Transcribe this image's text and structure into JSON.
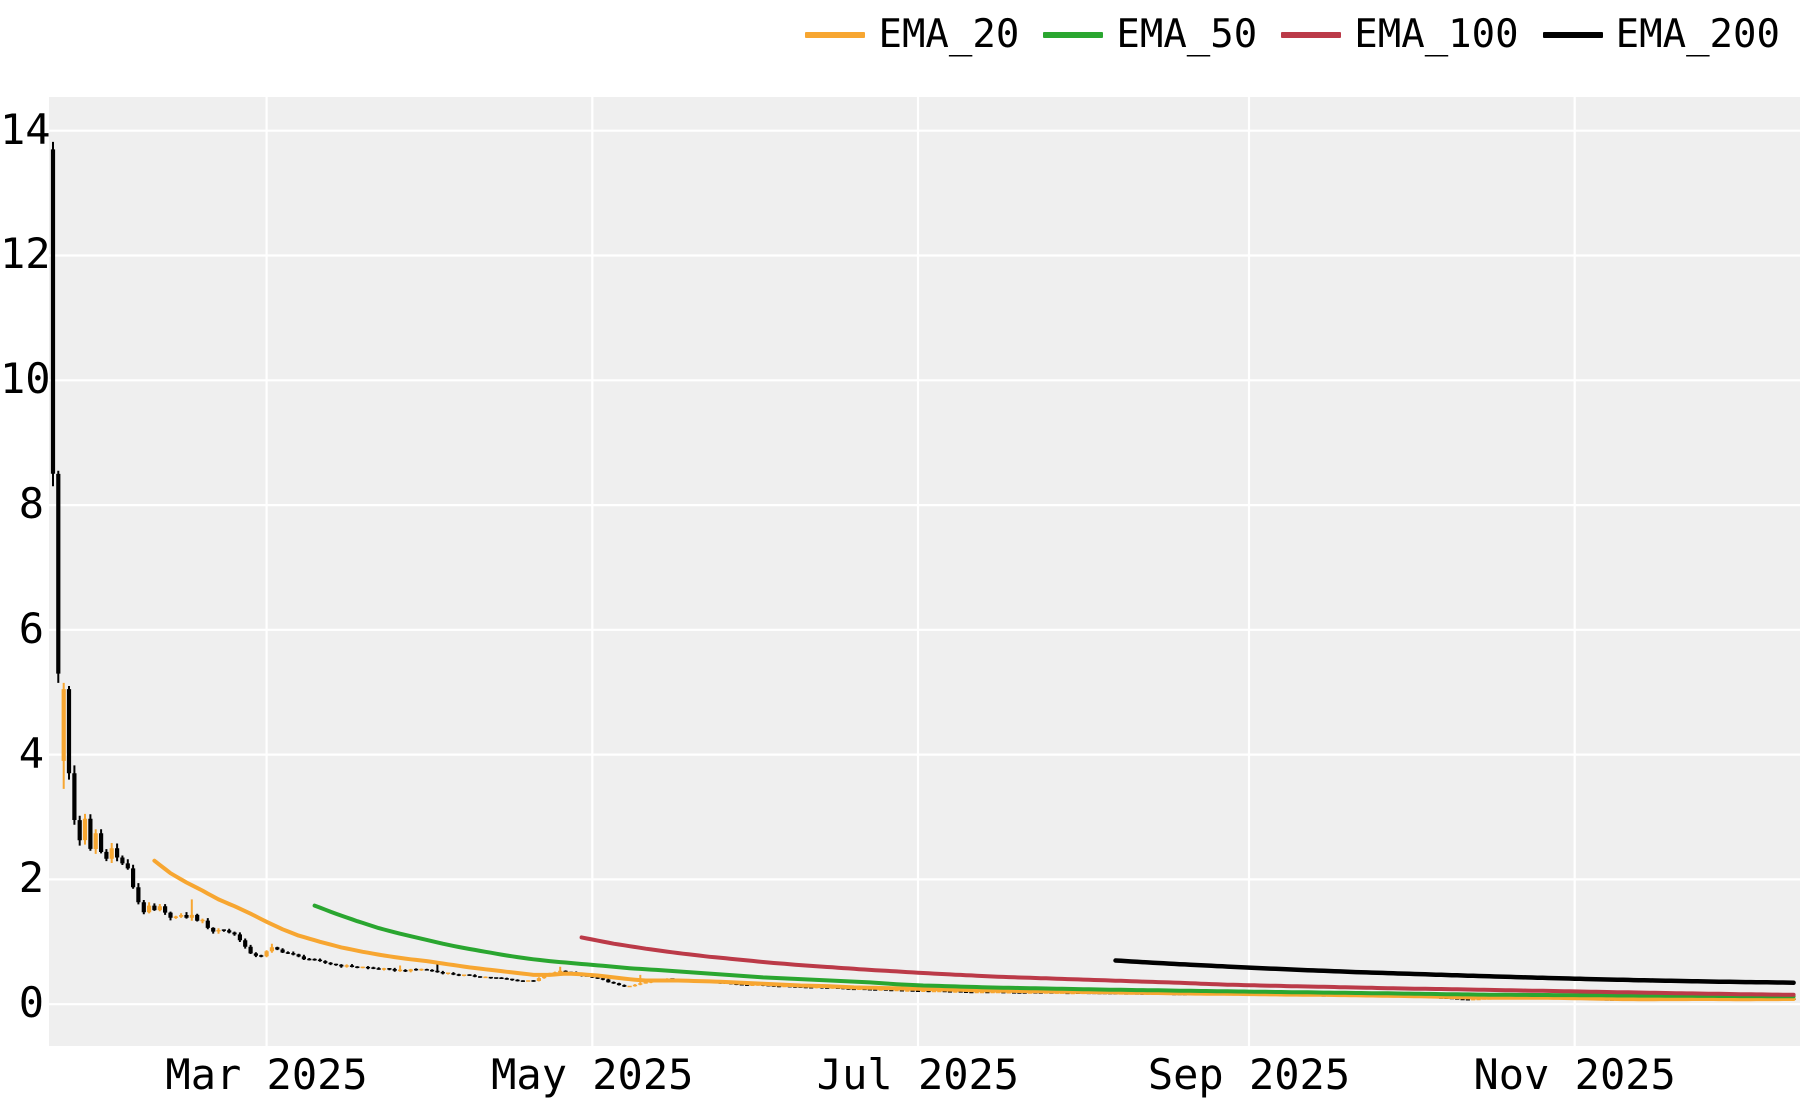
{
  "legend": {
    "items": [
      {
        "label": "EMA_20",
        "color": "#f7a631"
      },
      {
        "label": "EMA_50",
        "color": "#2aa630"
      },
      {
        "label": "EMA_100",
        "color": "#bb3a48"
      },
      {
        "label": "EMA_200",
        "color": "#000000"
      }
    ]
  },
  "chart_data": {
    "type": "candlestick",
    "title": "",
    "x_unit": "days since 2025-01-20, daily bars",
    "xlim_days": [
      -0.75,
      327.2
    ],
    "ylim": [
      -0.67,
      14.54
    ],
    "grid": "white on light-gray panel",
    "plot_bg": "#efefef",
    "grid_color": "#ffffff",
    "x_ticks": [
      {
        "label": "Mar 2025",
        "day": 40
      },
      {
        "label": "May 2025",
        "day": 101
      },
      {
        "label": "Jul 2025",
        "day": 162
      },
      {
        "label": "Sep 2025",
        "day": 224
      },
      {
        "label": "Nov 2025",
        "day": 285
      }
    ],
    "y_ticks": [
      {
        "label": "0",
        "value": 0
      },
      {
        "label": "2",
        "value": 2
      },
      {
        "label": "4",
        "value": 4
      },
      {
        "label": "6",
        "value": 6
      },
      {
        "label": "8",
        "value": 8
      },
      {
        "label": "10",
        "value": 10
      },
      {
        "label": "12",
        "value": 12
      },
      {
        "label": "14",
        "value": 14
      }
    ],
    "price": {
      "up_color": "#f7a631",
      "down_color": "#000000",
      "first_candles": [
        [
          13.7,
          13.82,
          8.3,
          8.5
        ],
        [
          8.5,
          8.55,
          5.15,
          5.3
        ],
        [
          3.9,
          5.15,
          3.45,
          5.05
        ],
        [
          5.05,
          5.1,
          3.6,
          3.7
        ]
      ],
      "close_path": [
        [
          0,
          8.5
        ],
        [
          1,
          5.3
        ],
        [
          2,
          5.05
        ],
        [
          3,
          3.7
        ],
        [
          4,
          3.0
        ],
        [
          5,
          2.6
        ],
        [
          6,
          2.95
        ],
        [
          7,
          2.5
        ],
        [
          8,
          2.75
        ],
        [
          9,
          2.45
        ],
        [
          10,
          2.4
        ],
        [
          11,
          2.5
        ],
        [
          12,
          2.35
        ],
        [
          13,
          2.28
        ],
        [
          14,
          2.15
        ],
        [
          15,
          1.9
        ],
        [
          16,
          1.65
        ],
        [
          17,
          1.5
        ],
        [
          18,
          1.55
        ],
        [
          19,
          1.5
        ],
        [
          20,
          1.55
        ],
        [
          21,
          1.45
        ],
        [
          23,
          1.4
        ],
        [
          26,
          1.42
        ],
        [
          28,
          1.32
        ],
        [
          30,
          1.18
        ],
        [
          32,
          1.2
        ],
        [
          34,
          1.12
        ],
        [
          35,
          1.05
        ],
        [
          36,
          0.92
        ],
        [
          37,
          0.8
        ],
        [
          39,
          0.78
        ],
        [
          41,
          0.9
        ],
        [
          43,
          0.85
        ],
        [
          46,
          0.76
        ],
        [
          50,
          0.68
        ],
        [
          54,
          0.62
        ],
        [
          58,
          0.59
        ],
        [
          62,
          0.56
        ],
        [
          66,
          0.54
        ],
        [
          69,
          0.56
        ],
        [
          72,
          0.52
        ],
        [
          76,
          0.47
        ],
        [
          80,
          0.44
        ],
        [
          84,
          0.41
        ],
        [
          88,
          0.37
        ],
        [
          90,
          0.38
        ],
        [
          92,
          0.47
        ],
        [
          95,
          0.53
        ],
        [
          97,
          0.5
        ],
        [
          99,
          0.46
        ],
        [
          101,
          0.44
        ],
        [
          103,
          0.39
        ],
        [
          105,
          0.33
        ],
        [
          107,
          0.28
        ],
        [
          109,
          0.31
        ],
        [
          111,
          0.35
        ],
        [
          113,
          0.38
        ],
        [
          115,
          0.4
        ],
        [
          118,
          0.38
        ],
        [
          122,
          0.36
        ],
        [
          126,
          0.33
        ],
        [
          130,
          0.31
        ],
        [
          134,
          0.3
        ],
        [
          138,
          0.28
        ],
        [
          142,
          0.27
        ],
        [
          146,
          0.26
        ],
        [
          150,
          0.24
        ],
        [
          154,
          0.23
        ],
        [
          158,
          0.22
        ],
        [
          162,
          0.21
        ],
        [
          167,
          0.2
        ],
        [
          172,
          0.19
        ],
        [
          178,
          0.185
        ],
        [
          184,
          0.18
        ],
        [
          190,
          0.175
        ],
        [
          196,
          0.17
        ],
        [
          202,
          0.165
        ],
        [
          208,
          0.16
        ],
        [
          214,
          0.155
        ],
        [
          220,
          0.15
        ],
        [
          226,
          0.145
        ],
        [
          232,
          0.14
        ],
        [
          238,
          0.135
        ],
        [
          244,
          0.13
        ],
        [
          250,
          0.125
        ],
        [
          256,
          0.115
        ],
        [
          260,
          0.1
        ],
        [
          263,
          0.08
        ],
        [
          265,
          0.07
        ],
        [
          268,
          0.085
        ],
        [
          271,
          0.095
        ],
        [
          275,
          0.1
        ],
        [
          280,
          0.1
        ],
        [
          285,
          0.09
        ],
        [
          288,
          0.075
        ],
        [
          292,
          0.065
        ],
        [
          296,
          0.07
        ],
        [
          300,
          0.08
        ],
        [
          305,
          0.085
        ],
        [
          310,
          0.08
        ],
        [
          315,
          0.078
        ],
        [
          320,
          0.08
        ],
        [
          326,
          0.08
        ]
      ],
      "wick_spikes": [
        {
          "day": 2,
          "low": 3.45
        },
        {
          "day": 6,
          "high": 3.05
        },
        {
          "day": 26,
          "high": 1.68
        },
        {
          "day": 41,
          "high": 0.97
        },
        {
          "day": 65,
          "high": 0.62
        },
        {
          "day": 72,
          "high": 0.66
        },
        {
          "day": 95,
          "high": 0.6
        },
        {
          "day": 110,
          "high": 0.47
        },
        {
          "day": 152,
          "high": 0.29
        },
        {
          "day": 232,
          "high": 0.2
        },
        {
          "day": 302,
          "high": 0.12
        }
      ]
    },
    "series": [
      {
        "name": "EMA_20",
        "color": "#f7a631",
        "width": 4,
        "points": [
          [
            19,
            2.3
          ],
          [
            22,
            2.1
          ],
          [
            25,
            1.95
          ],
          [
            28,
            1.82
          ],
          [
            31,
            1.68
          ],
          [
            34,
            1.57
          ],
          [
            37,
            1.45
          ],
          [
            40,
            1.32
          ],
          [
            43,
            1.2
          ],
          [
            46,
            1.1
          ],
          [
            50,
            1.0
          ],
          [
            54,
            0.91
          ],
          [
            58,
            0.84
          ],
          [
            62,
            0.78
          ],
          [
            66,
            0.73
          ],
          [
            70,
            0.69
          ],
          [
            74,
            0.64
          ],
          [
            78,
            0.59
          ],
          [
            82,
            0.55
          ],
          [
            86,
            0.51
          ],
          [
            90,
            0.47
          ],
          [
            93,
            0.47
          ],
          [
            96,
            0.49
          ],
          [
            99,
            0.48
          ],
          [
            102,
            0.46
          ],
          [
            105,
            0.43
          ],
          [
            108,
            0.4
          ],
          [
            111,
            0.38
          ],
          [
            114,
            0.38
          ],
          [
            117,
            0.38
          ],
          [
            121,
            0.37
          ],
          [
            125,
            0.36
          ],
          [
            130,
            0.34
          ],
          [
            135,
            0.32
          ],
          [
            140,
            0.3
          ],
          [
            145,
            0.29
          ],
          [
            150,
            0.27
          ],
          [
            155,
            0.26
          ],
          [
            160,
            0.25
          ],
          [
            165,
            0.24
          ],
          [
            170,
            0.23
          ],
          [
            176,
            0.22
          ],
          [
            182,
            0.21
          ],
          [
            190,
            0.2
          ],
          [
            198,
            0.19
          ],
          [
            206,
            0.18
          ],
          [
            214,
            0.17
          ],
          [
            222,
            0.165
          ],
          [
            230,
            0.155
          ],
          [
            238,
            0.15
          ],
          [
            246,
            0.14
          ],
          [
            254,
            0.13
          ],
          [
            260,
            0.12
          ],
          [
            264,
            0.11
          ],
          [
            268,
            0.105
          ],
          [
            273,
            0.103
          ],
          [
            278,
            0.104
          ],
          [
            283,
            0.1
          ],
          [
            288,
            0.092
          ],
          [
            293,
            0.083
          ],
          [
            298,
            0.08
          ],
          [
            304,
            0.082
          ],
          [
            310,
            0.083
          ],
          [
            316,
            0.08
          ],
          [
            321,
            0.082
          ],
          [
            326,
            0.083
          ]
        ]
      },
      {
        "name": "EMA_50",
        "color": "#2aa630",
        "width": 4,
        "points": [
          [
            49,
            1.58
          ],
          [
            53,
            1.45
          ],
          [
            57,
            1.33
          ],
          [
            61,
            1.22
          ],
          [
            65,
            1.13
          ],
          [
            69,
            1.05
          ],
          [
            73,
            0.97
          ],
          [
            77,
            0.9
          ],
          [
            81,
            0.84
          ],
          [
            85,
            0.78
          ],
          [
            89,
            0.73
          ],
          [
            93,
            0.69
          ],
          [
            97,
            0.66
          ],
          [
            101,
            0.63
          ],
          [
            105,
            0.6
          ],
          [
            109,
            0.57
          ],
          [
            113,
            0.55
          ],
          [
            118,
            0.52
          ],
          [
            123,
            0.49
          ],
          [
            128,
            0.46
          ],
          [
            133,
            0.43
          ],
          [
            138,
            0.41
          ],
          [
            143,
            0.39
          ],
          [
            148,
            0.37
          ],
          [
            153,
            0.35
          ],
          [
            158,
            0.32
          ],
          [
            163,
            0.3
          ],
          [
            169,
            0.285
          ],
          [
            175,
            0.27
          ],
          [
            181,
            0.26
          ],
          [
            187,
            0.25
          ],
          [
            193,
            0.24
          ],
          [
            200,
            0.23
          ],
          [
            207,
            0.222
          ],
          [
            214,
            0.213
          ],
          [
            221,
            0.205
          ],
          [
            228,
            0.197
          ],
          [
            235,
            0.19
          ],
          [
            242,
            0.182
          ],
          [
            249,
            0.175
          ],
          [
            256,
            0.167
          ],
          [
            263,
            0.158
          ],
          [
            270,
            0.152
          ],
          [
            277,
            0.148
          ],
          [
            285,
            0.145
          ],
          [
            293,
            0.14
          ],
          [
            301,
            0.137
          ],
          [
            309,
            0.133
          ],
          [
            317,
            0.13
          ],
          [
            326,
            0.127
          ]
        ]
      },
      {
        "name": "EMA_100",
        "color": "#bb3a48",
        "width": 4,
        "points": [
          [
            99,
            1.07
          ],
          [
            105,
            0.97
          ],
          [
            111,
            0.89
          ],
          [
            117,
            0.82
          ],
          [
            123,
            0.76
          ],
          [
            129,
            0.71
          ],
          [
            135,
            0.66
          ],
          [
            141,
            0.62
          ],
          [
            147,
            0.585
          ],
          [
            153,
            0.55
          ],
          [
            159,
            0.52
          ],
          [
            165,
            0.49
          ],
          [
            171,
            0.465
          ],
          [
            177,
            0.44
          ],
          [
            184,
            0.42
          ],
          [
            191,
            0.4
          ],
          [
            198,
            0.38
          ],
          [
            205,
            0.36
          ],
          [
            212,
            0.34
          ],
          [
            219,
            0.315
          ],
          [
            226,
            0.3
          ],
          [
            233,
            0.287
          ],
          [
            240,
            0.275
          ],
          [
            247,
            0.262
          ],
          [
            254,
            0.25
          ],
          [
            261,
            0.242
          ],
          [
            268,
            0.23
          ],
          [
            275,
            0.22
          ],
          [
            285,
            0.205
          ],
          [
            295,
            0.19
          ],
          [
            305,
            0.175
          ],
          [
            315,
            0.162
          ],
          [
            326,
            0.15
          ]
        ]
      },
      {
        "name": "EMA_200",
        "color": "#000000",
        "width": 4.5,
        "points": [
          [
            199,
            0.7
          ],
          [
            208,
            0.655
          ],
          [
            217,
            0.615
          ],
          [
            226,
            0.578
          ],
          [
            235,
            0.545
          ],
          [
            244,
            0.515
          ],
          [
            253,
            0.49
          ],
          [
            262,
            0.465
          ],
          [
            271,
            0.442
          ],
          [
            280,
            0.42
          ],
          [
            289,
            0.4
          ],
          [
            298,
            0.383
          ],
          [
            307,
            0.368
          ],
          [
            316,
            0.356
          ],
          [
            326,
            0.345
          ]
        ]
      }
    ]
  }
}
